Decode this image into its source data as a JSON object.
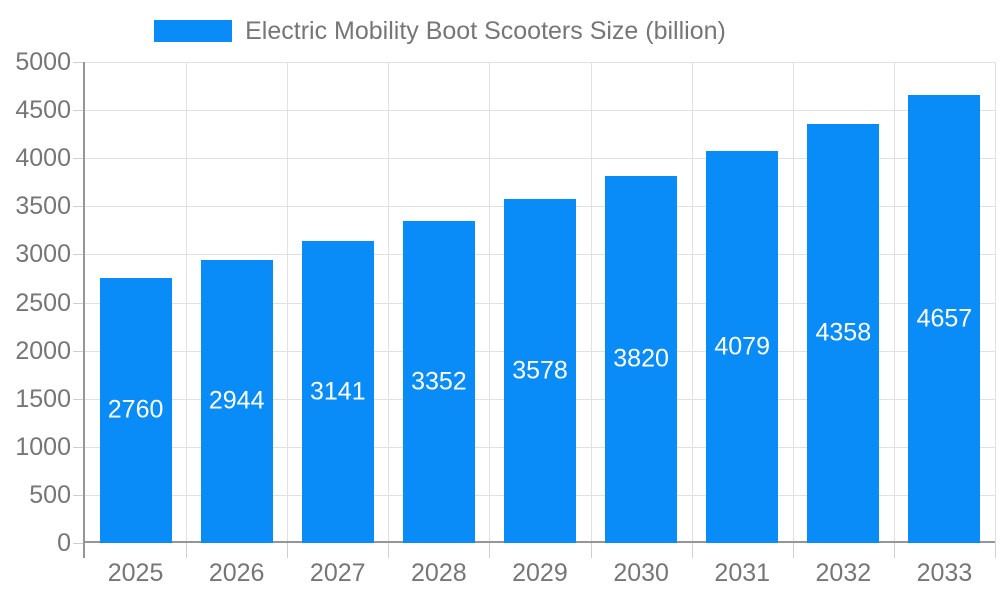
{
  "legend": {
    "label": "Electric Mobility Boot Scooters Size (billion)"
  },
  "colors": {
    "bar": "#0A8CF8",
    "grid": "#E1E1E1",
    "axis": "#969696",
    "tick": "#CFCFCF",
    "text": "#767676",
    "bar_label": "#FFFFFF"
  },
  "chart_data": {
    "type": "bar",
    "title": "Electric Mobility Boot Scooters Size (billion)",
    "categories": [
      "2025",
      "2026",
      "2027",
      "2028",
      "2029",
      "2030",
      "2031",
      "2032",
      "2033"
    ],
    "values": [
      2760,
      2944,
      3141,
      3352,
      3578,
      3820,
      4079,
      4358,
      4657
    ],
    "xlabel": "",
    "ylabel": "",
    "ylim": [
      0,
      5000
    ],
    "ytick_step": 500,
    "grid": true,
    "legend_position": "top",
    "value_labels": "inside-center",
    "bar_label_color": "#FFFFFF",
    "axis_text_color": "#767676"
  }
}
